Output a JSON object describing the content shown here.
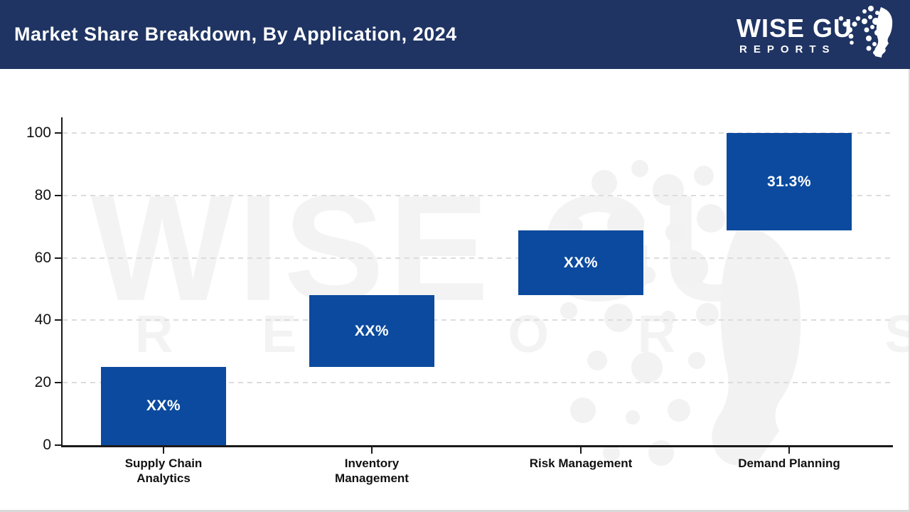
{
  "header": {
    "title": "Market Share Breakdown, By Application, 2024",
    "bg_color": "#1f3463",
    "logo": {
      "line1": "WISE GUY",
      "line2": "R E P O R T S"
    }
  },
  "watermark": {
    "line1": "WISE GU",
    "line2": "R E P O R T S"
  },
  "chart_data": {
    "type": "bar",
    "subtype": "waterfall-floating-segments",
    "title": "Market Share Breakdown, By Application, 2024",
    "categories": [
      "Supply Chain Analytics",
      "Inventory Management",
      "Risk Management",
      "Demand Planning"
    ],
    "categories_display": [
      [
        "Supply Chain",
        "Analytics"
      ],
      [
        "Inventory",
        "Management"
      ],
      [
        "Risk Management"
      ],
      [
        "Demand Planning"
      ]
    ],
    "segments": [
      {
        "category": "Supply Chain Analytics",
        "label": "XX%",
        "start": 0,
        "end": 25
      },
      {
        "category": "Inventory Management",
        "label": "XX%",
        "start": 25,
        "end": 48
      },
      {
        "category": "Risk Management",
        "label": "XX%",
        "start": 48,
        "end": 68.7
      },
      {
        "category": "Demand Planning",
        "label": "31.3%",
        "start": 68.7,
        "end": 100
      }
    ],
    "xlabel": "",
    "ylabel": "",
    "ylim": [
      0,
      100
    ],
    "y_ticks": [
      0,
      20,
      40,
      60,
      80,
      100
    ],
    "grid": true,
    "grid_style": "dashed",
    "legend": "none",
    "bar_color": "#0b4a9e",
    "bar_label_color": "#ffffff"
  }
}
